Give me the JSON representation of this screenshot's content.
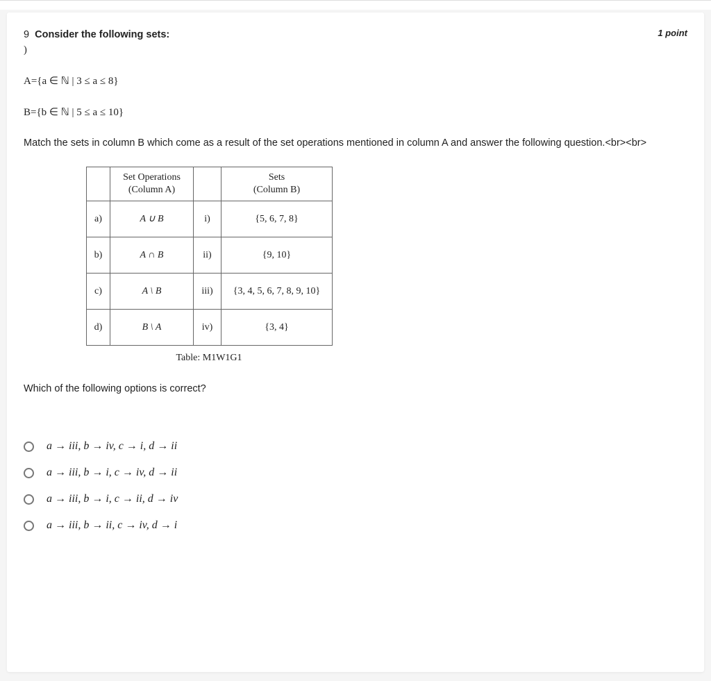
{
  "topCut": "1 point",
  "question": {
    "number": "9",
    "titleBold": "Consider the following sets:",
    "paren": ")",
    "points": "1 point",
    "setA": "A={a ∈ ℕ | 3 ≤ a ≤ 8}",
    "setB": "B={b ∈ ℕ | 5 ≤ a ≤ 10}",
    "instruction": "Match the sets in column B which come as a result of the set operations mentioned in column A and answer the following question.<br><br>",
    "subQuestion": "Which of the following options is correct?"
  },
  "table": {
    "headerA_l1": "Set Operations",
    "headerA_l2": "(Column A)",
    "headerB_l1": "Sets",
    "headerB_l2": "(Column B)",
    "rows": [
      {
        "a": "a)",
        "op": "A ∪ B",
        "r": "i)",
        "set": "{5, 6, 7, 8}"
      },
      {
        "a": "b)",
        "op": "A ∩ B",
        "r": "ii)",
        "set": "{9, 10}"
      },
      {
        "a": "c)",
        "op": "A \\ B",
        "r": "iii)",
        "set": "{3, 4, 5, 6, 7, 8, 9, 10}"
      },
      {
        "a": "d)",
        "op": "B \\ A",
        "r": "iv)",
        "set": "{3, 4}"
      }
    ],
    "caption": "Table: M1W1G1"
  },
  "options": [
    "a → iii, b → iv, c → i, d → ii",
    "a → iii, b → i, c → iv, d → ii",
    "a → iii, b → i, c → ii, d → iv",
    "a → iii, b → ii, c → iv, d → i"
  ]
}
